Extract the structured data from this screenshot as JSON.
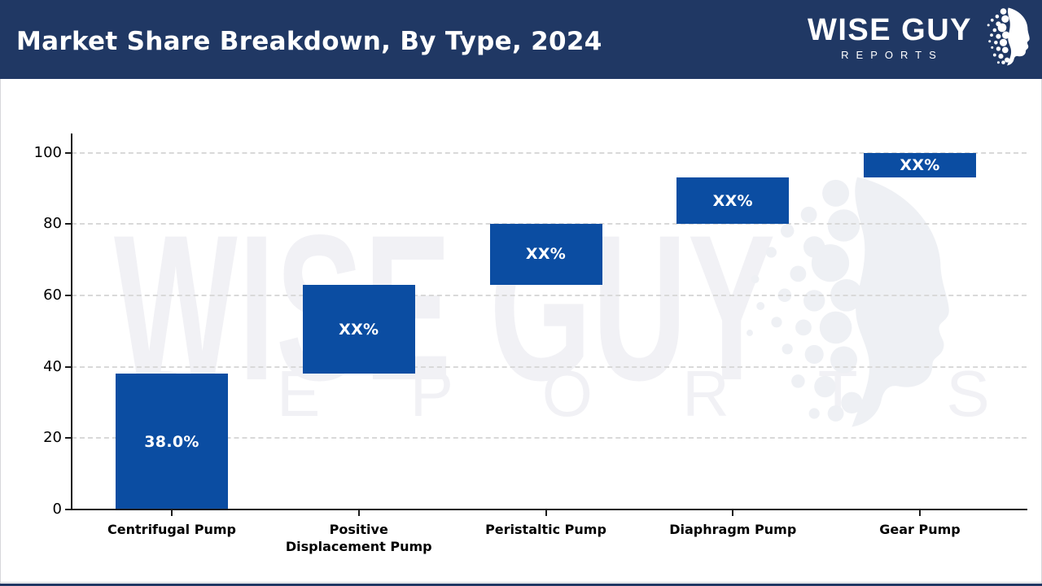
{
  "header": {
    "title": "Market Share Breakdown, By Type, 2024",
    "logo": {
      "line1": "WISE GUY",
      "line2": "REPORTS"
    }
  },
  "watermark": {
    "line1": "WISE GUY",
    "line2": "R E P O R T S"
  },
  "colors": {
    "header_bg": "#203864",
    "bar": "#0b4da2",
    "grid": "#d9d9d9",
    "axis": "#1c1c1c",
    "bar_label": "#ffffff",
    "watermark": "#f1f1f5"
  },
  "chart_data": {
    "type": "bar",
    "subtype": "waterfall",
    "title": "Market Share Breakdown, By Type, 2024",
    "categories": [
      "Centrifugal Pump",
      "Positive\nDisplacement Pump",
      "Peristaltic Pump",
      "Diaphragm Pump",
      "Gear Pump"
    ],
    "segments": [
      {
        "category": "Centrifugal Pump",
        "start": 0,
        "end": 38,
        "label": "38.0%"
      },
      {
        "category": "Positive Displacement Pump",
        "start": 38,
        "end": 63,
        "label": "XX%"
      },
      {
        "category": "Peristaltic Pump",
        "start": 63,
        "end": 80,
        "label": "XX%"
      },
      {
        "category": "Diaphragm Pump",
        "start": 80,
        "end": 93,
        "label": "XX%"
      },
      {
        "category": "Gear Pump",
        "start": 93,
        "end": 100,
        "label": "XX%"
      }
    ],
    "yticks": [
      0,
      20,
      40,
      60,
      80,
      100
    ],
    "ytick_labels": [
      "0",
      "20",
      "40",
      "60",
      "80",
      "100"
    ],
    "ylim": [
      0,
      105
    ],
    "xlabel": "",
    "ylabel": "",
    "grid": "horizontal-dashed",
    "legend": "none"
  }
}
